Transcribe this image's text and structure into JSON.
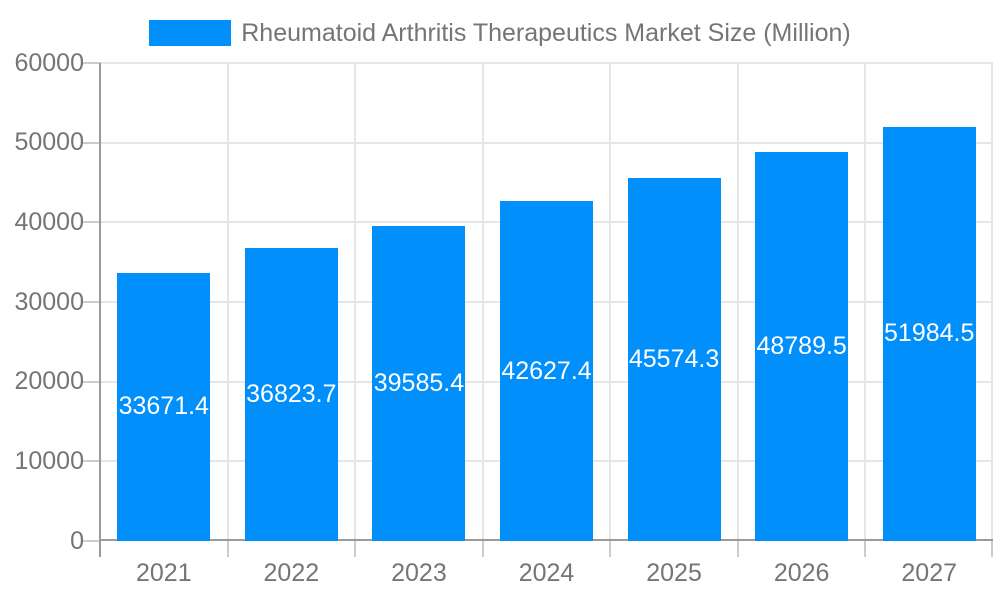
{
  "legend": {
    "label": "Rheumatoid Arthritis Therapeutics Market Size (Million)",
    "swatch_color": "#008FFB"
  },
  "chart_data": {
    "type": "bar",
    "title": "Rheumatoid Arthritis Therapeutics Market Size (Million)",
    "categories": [
      "2021",
      "2022",
      "2023",
      "2024",
      "2025",
      "2026",
      "2027"
    ],
    "values": [
      33671.4,
      36823.7,
      39585.4,
      42627.4,
      45574.3,
      48789.5,
      51984.5
    ],
    "value_labels": [
      "33671.4",
      "36823.7",
      "39585.4",
      "42627.4",
      "45574.3",
      "48789.5",
      "51984.5"
    ],
    "xlabel": "",
    "ylabel": "",
    "ylim": [
      0,
      60000
    ],
    "yticks": [
      0,
      10000,
      20000,
      30000,
      40000,
      50000,
      60000
    ],
    "grid": true,
    "legend_position": "top-center",
    "colors": {
      "bar": "#008FFB",
      "grid": "#e6e6e6",
      "axis": "#9a9a9a",
      "tick": "#cccccc",
      "text": "#757575",
      "value_label": "#ffffff"
    }
  }
}
